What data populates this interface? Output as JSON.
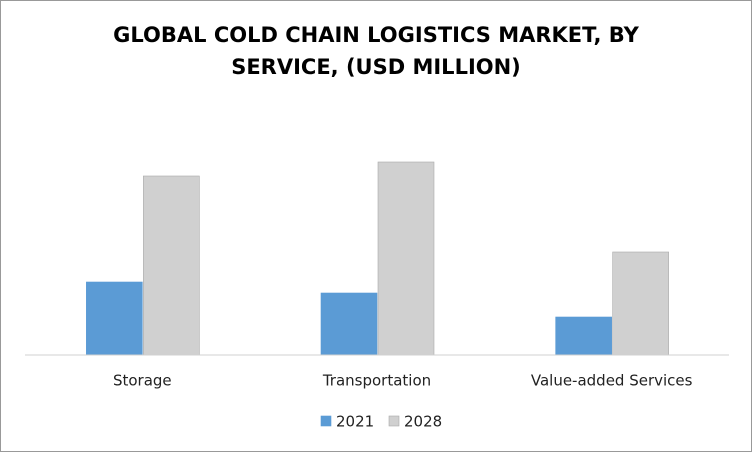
{
  "chart_data": {
    "type": "bar",
    "title": "GLOBAL COLD CHAIN LOGISTICS MARKET, BY SERVICE, (USD MILLION)",
    "categories": [
      "Storage",
      "Transportation",
      "Value-added Services"
    ],
    "series": [
      {
        "name": "2021",
        "color": "#5b9bd5",
        "values": [
          73,
          62,
          38
        ]
      },
      {
        "name": "2028",
        "color": "#d0d0d0",
        "values": [
          179,
          193,
          103
        ]
      }
    ],
    "ylim": [
      0,
      213
    ]
  }
}
